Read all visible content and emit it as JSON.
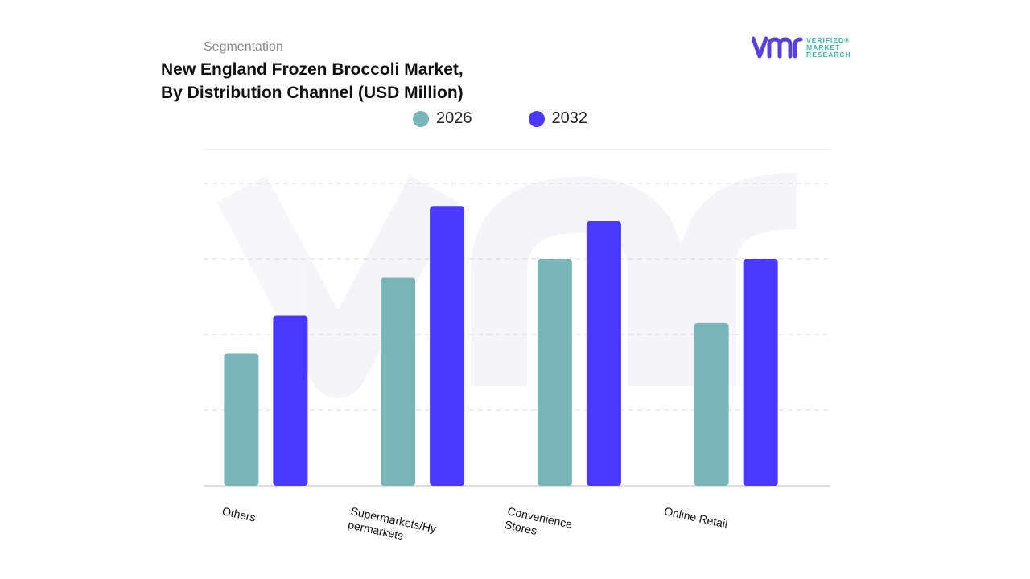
{
  "header": {
    "segment_label": "Segmentation",
    "title_line1": "New England Frozen Broccoli Market,",
    "title_line2": "By Distribution Channel (USD Million)"
  },
  "logo": {
    "mark": "vmr",
    "line1": "VERIFIED",
    "line2": "MARKET",
    "line3": "RESEARCH",
    "registered": "®"
  },
  "chart_data": {
    "type": "bar",
    "title": "New England Frozen Broccoli Market, By Distribution Channel (USD Million)",
    "xlabel": "",
    "ylabel": "",
    "categories": [
      "Others",
      "Supermarkets/Hy permarkets",
      "Convenience Stores",
      "Online Retail"
    ],
    "category_lines": [
      [
        "Others"
      ],
      [
        "Supermarkets/Hy",
        "permarkets"
      ],
      [
        "Convenience",
        "Stores"
      ],
      [
        "Online Retail"
      ]
    ],
    "series": [
      {
        "name": "2026",
        "color": "#7ab5b8",
        "values": [
          1.75,
          2.75,
          3.0,
          2.15
        ]
      },
      {
        "name": "2032",
        "color": "#4a38ff",
        "values": [
          2.25,
          3.7,
          3.5,
          3.0
        ]
      }
    ],
    "ylim": [
      0,
      4.0
    ],
    "grid": true,
    "legend_position": "top",
    "watermark": "vmr"
  }
}
